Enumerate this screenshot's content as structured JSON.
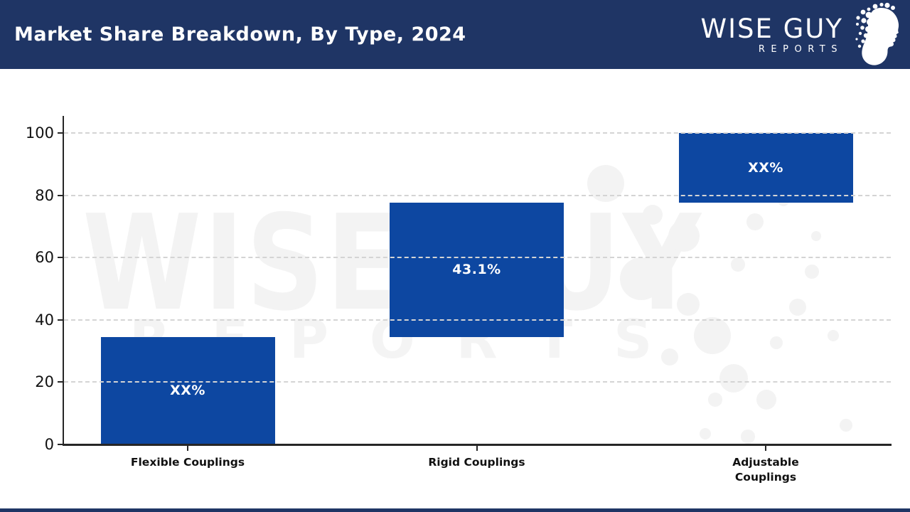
{
  "header": {
    "title": "Market Share Breakdown, By Type, 2024",
    "bg_color": "#1f3565",
    "logo": {
      "line1": "WISE GUY",
      "line2": "REPORTS"
    }
  },
  "watermark": {
    "line1": "WISE GUY",
    "line2": "REPORTS"
  },
  "footer": {
    "bg_color": "#1f3565"
  },
  "chart_data": {
    "type": "bar",
    "subtype": "waterfall",
    "title": "Market Share Breakdown, By Type, 2024",
    "categories": [
      "Flexible Couplings",
      "Rigid Couplings",
      "Adjustable\nCouplings"
    ],
    "segments": [
      {
        "category": "Flexible Couplings",
        "start": 0,
        "end": 34.5,
        "value": 34.5,
        "label": "XX%"
      },
      {
        "category": "Rigid Couplings",
        "start": 34.5,
        "end": 77.6,
        "value": 43.1,
        "label": "43.1%"
      },
      {
        "category": "Adjustable Couplings",
        "start": 77.6,
        "end": 100,
        "value": 22.4,
        "label": "XX%"
      }
    ],
    "yticks": [
      0,
      20,
      40,
      60,
      80,
      100
    ],
    "ylim": [
      0,
      100
    ],
    "xlabel": "",
    "ylabel": "",
    "grid": "horizontal-dashed",
    "bar_color": "#0d47a1",
    "value_label_color": "#ffffff"
  }
}
